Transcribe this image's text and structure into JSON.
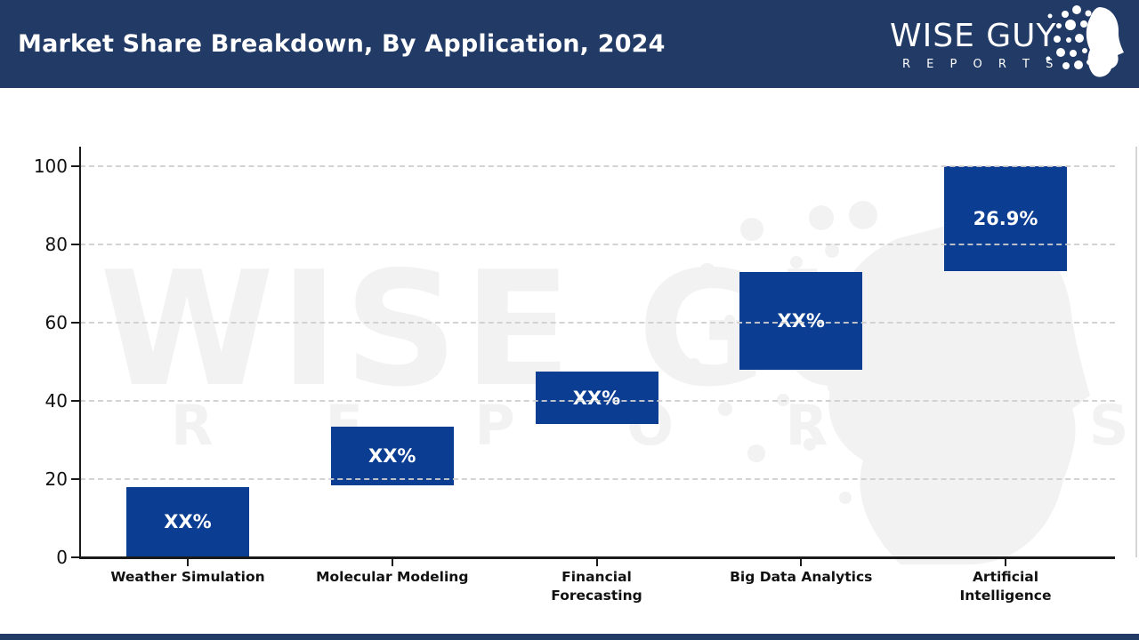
{
  "header": {
    "title": "Market Share Breakdown, By Application, 2024",
    "logo": {
      "line1": "WISE GUY",
      "line2": "R E P O R T S"
    }
  },
  "watermark": {
    "line1": "WISE GU",
    "line2": "R E P O R T S"
  },
  "colors": {
    "header_bg": "#213a66",
    "footer_bg": "#213a66",
    "bar": "#0b3e92",
    "bar_label": "#ffffff",
    "grid": "#cecece",
    "axis": "#1a1a1a",
    "watermark": "#f2f2f2"
  },
  "chart_data": {
    "type": "bar",
    "subtype": "waterfall-floating-bars",
    "title": "Market Share Breakdown, By Application, 2024",
    "xlabel": "",
    "ylabel": "",
    "ylim": [
      0,
      105
    ],
    "yticks": [
      0,
      20,
      40,
      60,
      80,
      100
    ],
    "grid": "horizontal-dashed",
    "legend": null,
    "categories": [
      "Weather Simulation",
      "Molecular Modeling",
      "Financial\nForecasting",
      "Big Data Analytics",
      "Artificial\nIntelligence"
    ],
    "segments": [
      {
        "category": "Weather Simulation",
        "start": 0,
        "end": 18,
        "label": "XX%"
      },
      {
        "category": "Molecular Modeling",
        "start": 18.5,
        "end": 33.5,
        "label": "XX%"
      },
      {
        "category": "Financial Forecasting",
        "start": 34,
        "end": 47.5,
        "label": "XX%"
      },
      {
        "category": "Big Data Analytics",
        "start": 48,
        "end": 73,
        "label": "XX%"
      },
      {
        "category": "Artificial Intelligence",
        "start": 73.1,
        "end": 100,
        "label": "26.9%"
      }
    ]
  }
}
